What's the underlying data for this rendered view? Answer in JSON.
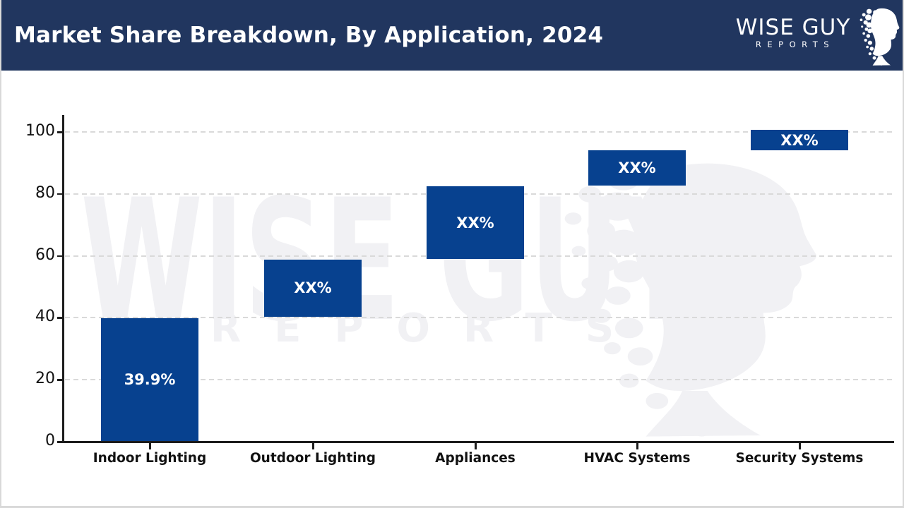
{
  "header": {
    "title": "Market Share Breakdown, By Application, 2024",
    "logo": {
      "line1": "WISE GUY",
      "line2": "REPORTS"
    }
  },
  "watermark": {
    "line1": "WISE GUY",
    "line2": "REPORTS"
  },
  "colors": {
    "header_bg": "#21365f",
    "title_text": "#ffffff",
    "bar": "#07418f",
    "bar_label": "#ffffff",
    "grid": "#d9d9d9",
    "axis": "#1c1c1c",
    "tick_text": "#111111",
    "watermark": "#f1f1f4",
    "canvas_border": "#d9d9d9"
  },
  "chart_data": {
    "type": "bar",
    "subtype": "waterfall",
    "title": "Market Share Breakdown, By Application, 2024",
    "xlabel": "",
    "ylabel": "",
    "categories": [
      "Indoor Lighting",
      "Outdoor Lighting",
      "Appliances",
      "HVAC Systems",
      "Security Systems"
    ],
    "bars": [
      {
        "category": "Indoor Lighting",
        "start": 0,
        "end": 39.9,
        "label": "39.9%"
      },
      {
        "category": "Outdoor Lighting",
        "start": 40.4,
        "end": 58.7,
        "label": "XX%"
      },
      {
        "category": "Appliances",
        "start": 59.0,
        "end": 82.4,
        "label": "XX%"
      },
      {
        "category": "HVAC Systems",
        "start": 82.6,
        "end": 94.1,
        "label": "XX%"
      },
      {
        "category": "Security Systems",
        "start": 94.0,
        "end": 100.6,
        "label": "XX%"
      }
    ],
    "yticks": [
      0,
      20,
      40,
      60,
      80,
      100
    ],
    "ylim": [
      0,
      105
    ],
    "grid": "horizontal-dashed",
    "legend": "none"
  }
}
